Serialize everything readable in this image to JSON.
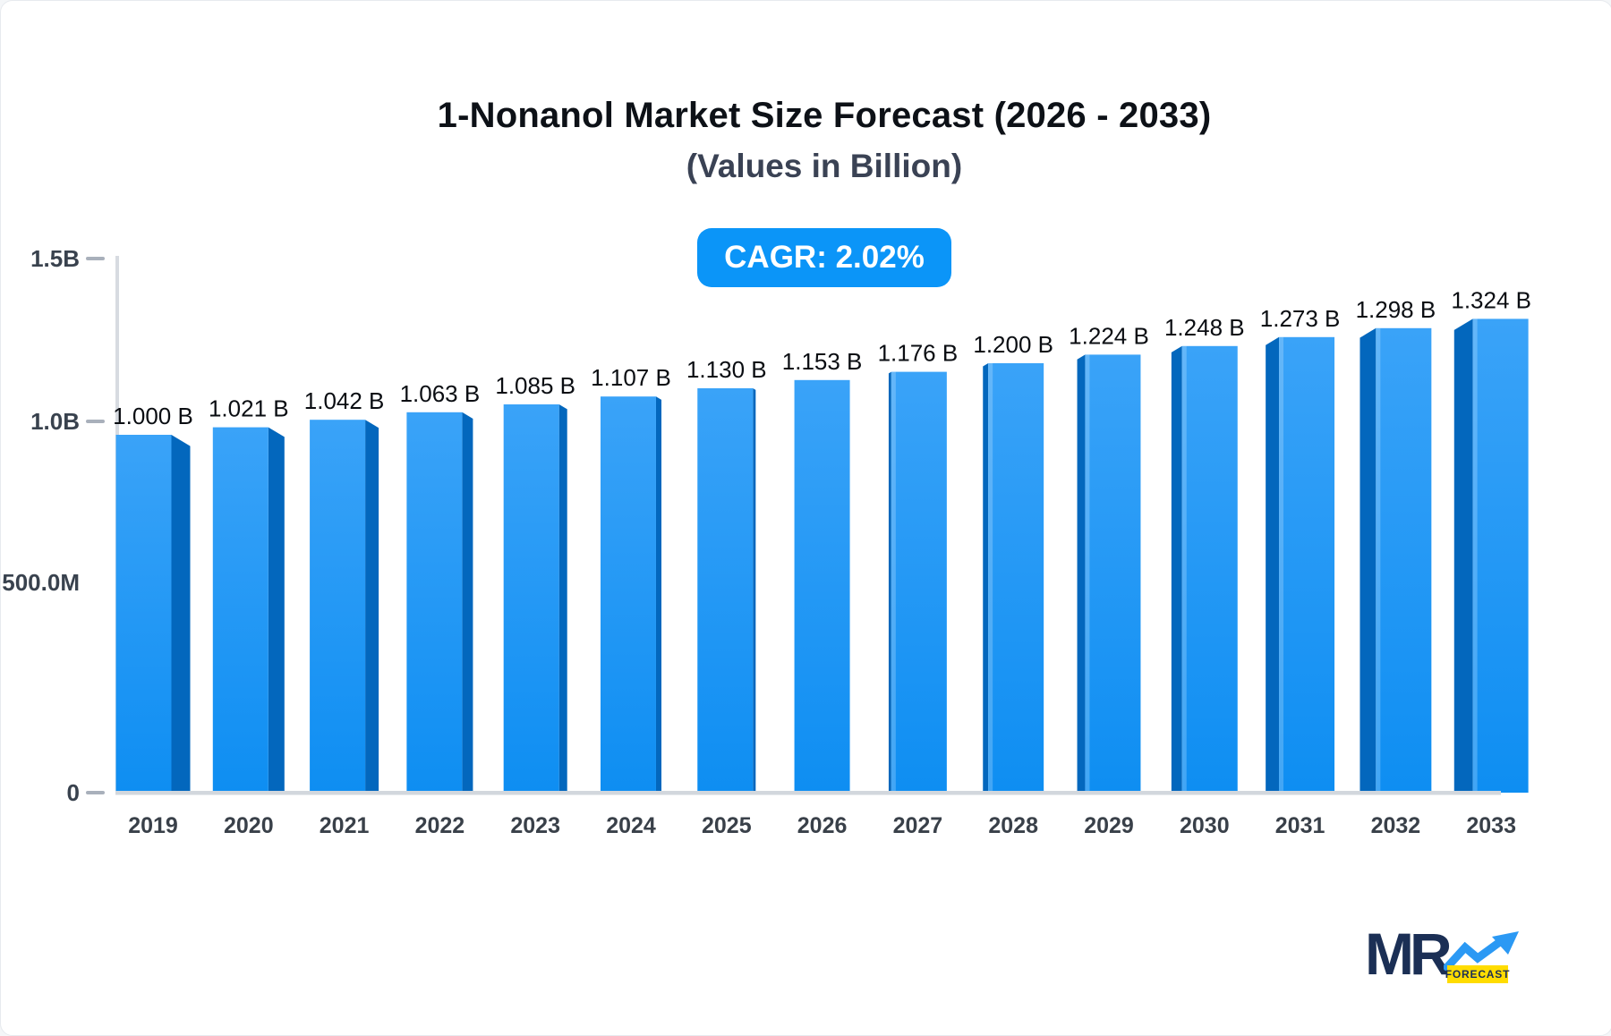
{
  "header": {
    "title": "1-Nonanol Market Size Forecast (2026 - 2033)",
    "subtitle": "(Values in Billion)",
    "cagr_label": "CAGR: 2.02%"
  },
  "chart_data": {
    "type": "bar",
    "title": "1-Nonanol Market Size Forecast (2026 - 2033)",
    "subtitle": "(Values in Billion)",
    "cagr": "2.02%",
    "categories": [
      "2019",
      "2020",
      "2021",
      "2022",
      "2023",
      "2024",
      "2025",
      "2026",
      "2027",
      "2028",
      "2029",
      "2030",
      "2031",
      "2032",
      "2033"
    ],
    "values": [
      1.0,
      1.021,
      1.042,
      1.063,
      1.085,
      1.107,
      1.13,
      1.153,
      1.176,
      1.2,
      1.224,
      1.248,
      1.273,
      1.298,
      1.324
    ],
    "value_labels": [
      "1.000 B",
      "1.021 B",
      "1.042 B",
      "1.063 B",
      "1.085 B",
      "1.107 B",
      "1.130 B",
      "1.153 B",
      "1.176 B",
      "1.200 B",
      "1.224 B",
      "1.248 B",
      "1.273 B",
      "1.298 B",
      "1.324 B"
    ],
    "xlabel": "",
    "ylabel": "",
    "ylim": [
      0,
      1.5
    ],
    "grid": false,
    "legend": "none",
    "yticks": [
      {
        "label": "1.5B",
        "value": 1.5,
        "dash": true
      },
      {
        "label": "1.0B",
        "value": 1.0,
        "dash": true
      },
      {
        "label": "500.0M",
        "value": 0.5,
        "dash": false
      },
      {
        "label": "0",
        "value": 0.0,
        "dash": true
      }
    ],
    "colors": {
      "bar_face_top": "#3aa3f8",
      "bar_face_bottom": "#0e8ef2",
      "bar_side": "#0367bd",
      "axis_line": "#d7dbe1",
      "baseline": "#d2d7dd",
      "tick_dash": "#a9b0bb",
      "tick_text": "#39424e",
      "year_text": "#394049",
      "value_text": "#0a0d12",
      "badge_bg": "#0b95f8",
      "badge_text": "#ffffff"
    }
  },
  "logo": {
    "brand": "MR",
    "tag": "FORECAST",
    "colors": {
      "navy": "#1b2f55",
      "blue": "#2b99f4",
      "yellow": "#ffdc00"
    }
  }
}
